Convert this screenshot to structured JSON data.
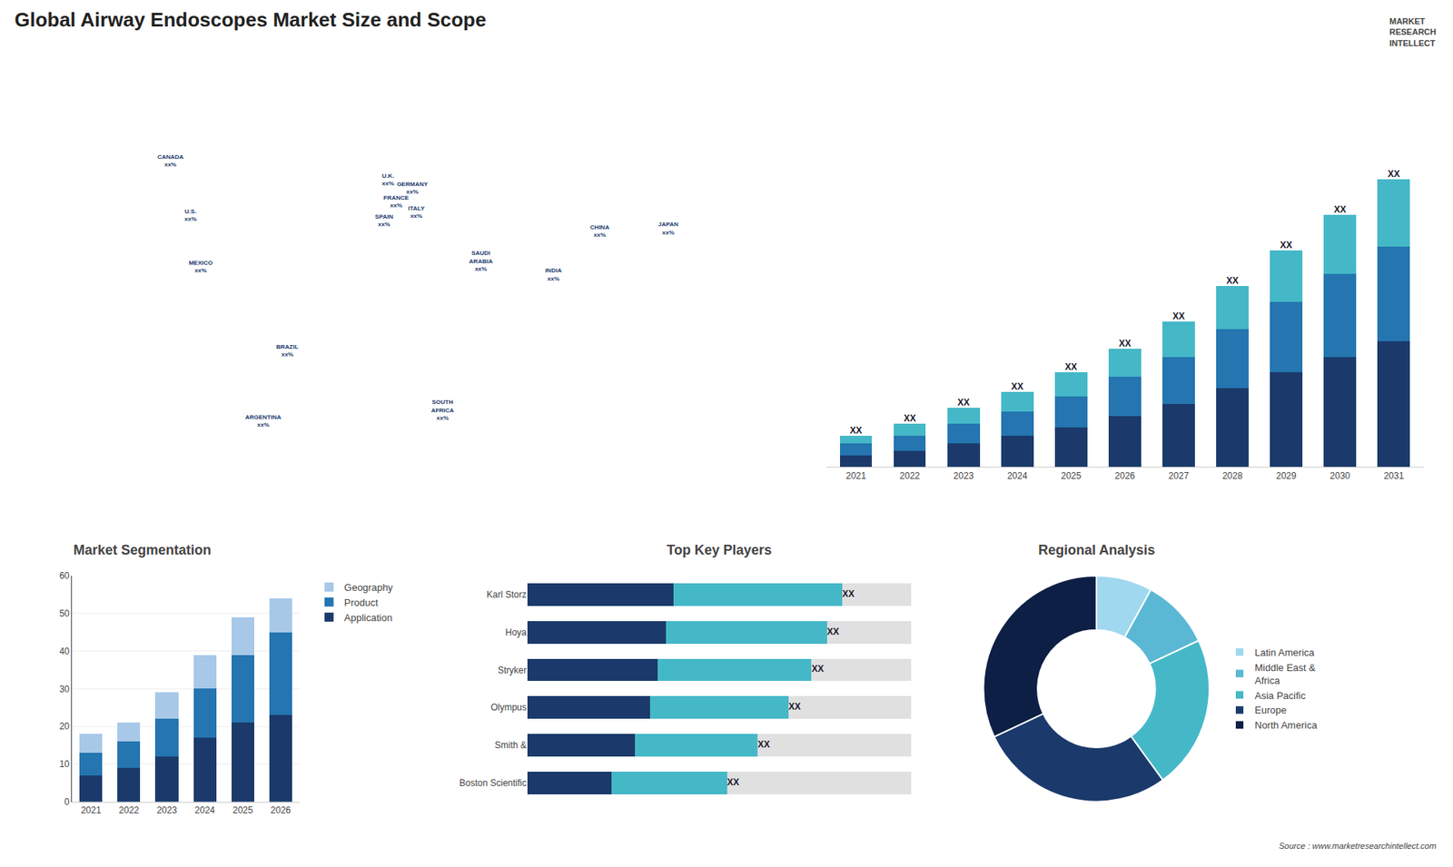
{
  "chart_data": [
    {
      "type": "map",
      "title": "Global Airway Endoscopes Market Size and Scope",
      "annotations": [
        {
          "text": "CANADA\nxx%",
          "x": -110,
          "y": 62
        },
        {
          "text": "U.S.\nxx%",
          "x": -100,
          "y": 42
        },
        {
          "text": "MEXICO\nxx%",
          "x": -95,
          "y": 23
        },
        {
          "text": "BRAZIL\nxx%",
          "x": -52,
          "y": -8
        },
        {
          "text": "ARGENTINA\nxx%",
          "x": -64,
          "y": -34
        },
        {
          "text": "U.K.\nxx%",
          "x": -2,
          "y": 55
        },
        {
          "text": "FRANCE\nxx%",
          "x": 2,
          "y": 47
        },
        {
          "text": "SPAIN\nxx%",
          "x": -4,
          "y": 40
        },
        {
          "text": "GERMANY\nxx%",
          "x": 10,
          "y": 52
        },
        {
          "text": "ITALY\nxx%",
          "x": 12,
          "y": 43
        },
        {
          "text": "SAUDI\nARABIA\nxx%",
          "x": 44,
          "y": 25
        },
        {
          "text": "SOUTH\nAFRICA\nxx%",
          "x": 25,
          "y": -30
        },
        {
          "text": "CHINA\nxx%",
          "x": 103,
          "y": 36
        },
        {
          "text": "JAPAN\nxx%",
          "x": 137,
          "y": 37
        },
        {
          "text": "INDIA\nxx%",
          "x": 80,
          "y": 20
        }
      ],
      "xlim": [
        -180,
        180
      ],
      "ylim": [
        -60,
        85
      ],
      "tick_labels": false,
      "color": "#1b3a6b"
    },
    {
      "type": "bar",
      "stacked": true,
      "categories": [
        "2021",
        "2022",
        "2023",
        "2024",
        "2025",
        "2026",
        "2027",
        "2028",
        "2029",
        "2030",
        "2031"
      ],
      "series": [
        {
          "color": "#1b3a6b",
          "values": [
            3,
            4,
            6,
            8,
            10,
            13,
            16,
            20,
            24,
            28,
            32
          ]
        },
        {
          "color": "#2475b0",
          "values": [
            3,
            4,
            5,
            6,
            8,
            10,
            12,
            15,
            18,
            21,
            24
          ]
        },
        {
          "color": "#45b8c8",
          "values": [
            2,
            3,
            4,
            5,
            6,
            7,
            9,
            11,
            13,
            15,
            17
          ],
          "value_labels": [
            "XX",
            "XX",
            "XX",
            "XX",
            "XX",
            "XX",
            "XX",
            "XX",
            "XX",
            "XX",
            "XX"
          ]
        }
      ],
      "data_labels": true,
      "ylim": [
        0,
        85
      ],
      "tick_labels": "x",
      "grid": false,
      "annotations": [
        "MARKET\nRESEARCH\nINTELLECT"
      ]
    },
    {
      "type": "bar",
      "title": "Market Segmentation",
      "stacked": true,
      "categories": [
        "2021",
        "2022",
        "2023",
        "2024",
        "2025",
        "2026"
      ],
      "series": [
        {
          "name": "Application",
          "color": "#1b3a6b",
          "values": [
            7,
            9,
            12,
            17,
            21,
            23
          ]
        },
        {
          "name": "Product",
          "color": "#2475b0",
          "values": [
            6,
            7,
            10,
            13,
            18,
            22
          ]
        },
        {
          "name": "Geography",
          "color": "#a8c8e8",
          "values": [
            5,
            5,
            7,
            9,
            10,
            9
          ]
        }
      ],
      "ylim": [
        0,
        60
      ],
      "yticks": [
        0,
        10,
        20,
        30,
        40,
        50,
        60
      ],
      "grid": true,
      "legend": "right"
    },
    {
      "type": "bar",
      "title": "Top Key Players",
      "orientation": "horizontal",
      "stacked": true,
      "categories": [
        "Karl Storz",
        "Hoya",
        "Stryker",
        "Olympus",
        "Smith &",
        "Boston Scientific"
      ],
      "series": [
        {
          "color": "#1b3a6b",
          "values": [
            0.38,
            0.36,
            0.34,
            0.32,
            0.28,
            0.22
          ]
        },
        {
          "color": "#45b8c8",
          "values": [
            0.44,
            0.42,
            0.4,
            0.36,
            0.32,
            0.3
          ],
          "value_labels": [
            "XX",
            "XX",
            "XX",
            "XX",
            "XX",
            "XX"
          ]
        },
        {
          "color": "#e0e0e0",
          "values": [
            0.18,
            0.22,
            0.26,
            0.32,
            0.4,
            0.48
          ]
        }
      ],
      "data_labels": true,
      "xlim": [
        0,
        1
      ],
      "tick_labels": "y",
      "grid": false
    },
    {
      "type": "pie",
      "title": "Regional Analysis",
      "categories": [
        "Latin America",
        "Middle East &\nAfrica",
        "Asia Pacific",
        "Europe",
        "North America"
      ],
      "values": [
        8,
        10,
        22,
        28,
        32
      ],
      "colors": [
        "#a0d8ef",
        "#5bb8d4",
        "#45b8c8",
        "#1b3a6b",
        "#0d1f45"
      ],
      "legend": "right",
      "annotations": [
        "Source : www.marketresearchintellect.com"
      ]
    }
  ]
}
